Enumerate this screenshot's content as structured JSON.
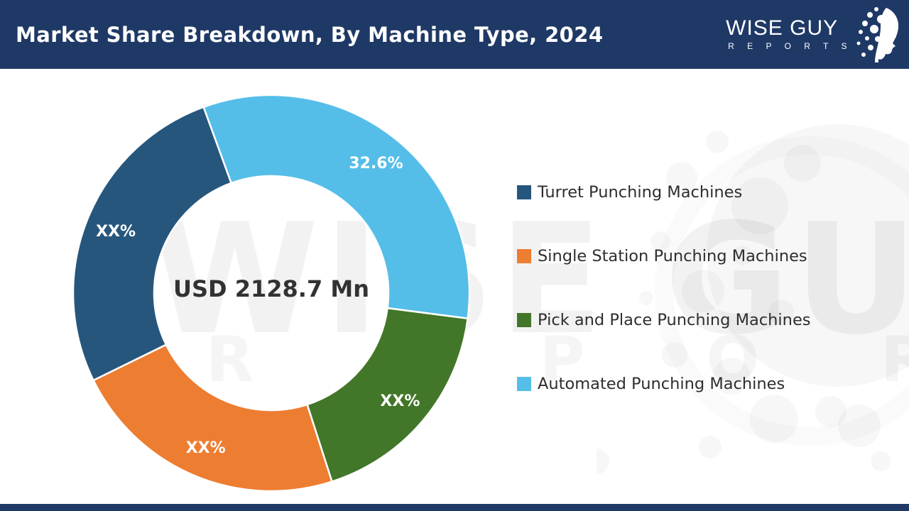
{
  "header": {
    "title": "Market Share Breakdown, By Machine Type, 2024",
    "logo": {
      "line1": "WISE GUY",
      "line2": "R E P O R T S"
    }
  },
  "colors": {
    "header_bar": "#1F3966",
    "footer_bar": "#1F3966",
    "center_text": "#323232",
    "legend_text": "#2e2e2e"
  },
  "chart_data": {
    "type": "pie",
    "subtype": "donut",
    "title": "Market Share Breakdown, By Machine Type, 2024",
    "center_label": "USD 2128.7 Mn",
    "legend_position": "right",
    "start_angle_deg": -20,
    "direction": "clockwise",
    "draw_order": [
      3,
      2,
      1,
      0
    ],
    "segments": [
      {
        "name": "Turret Punching Machines",
        "color": "#26567C",
        "value_pct": 26.7,
        "display_label": "XX%"
      },
      {
        "name": "Single Station Punching Machines",
        "color": "#ED7D31",
        "value_pct": 22.7,
        "display_label": "XX%"
      },
      {
        "name": "Pick and Place Punching Machines",
        "color": "#427629",
        "value_pct": 18.0,
        "display_label": "XX%"
      },
      {
        "name": "Automated Punching Machines",
        "color": "#55BEE8",
        "value_pct": 32.6,
        "display_label": "32.6%"
      }
    ]
  },
  "watermark": {
    "line1": "WISE GUY",
    "line2": "R E P O R T S"
  }
}
